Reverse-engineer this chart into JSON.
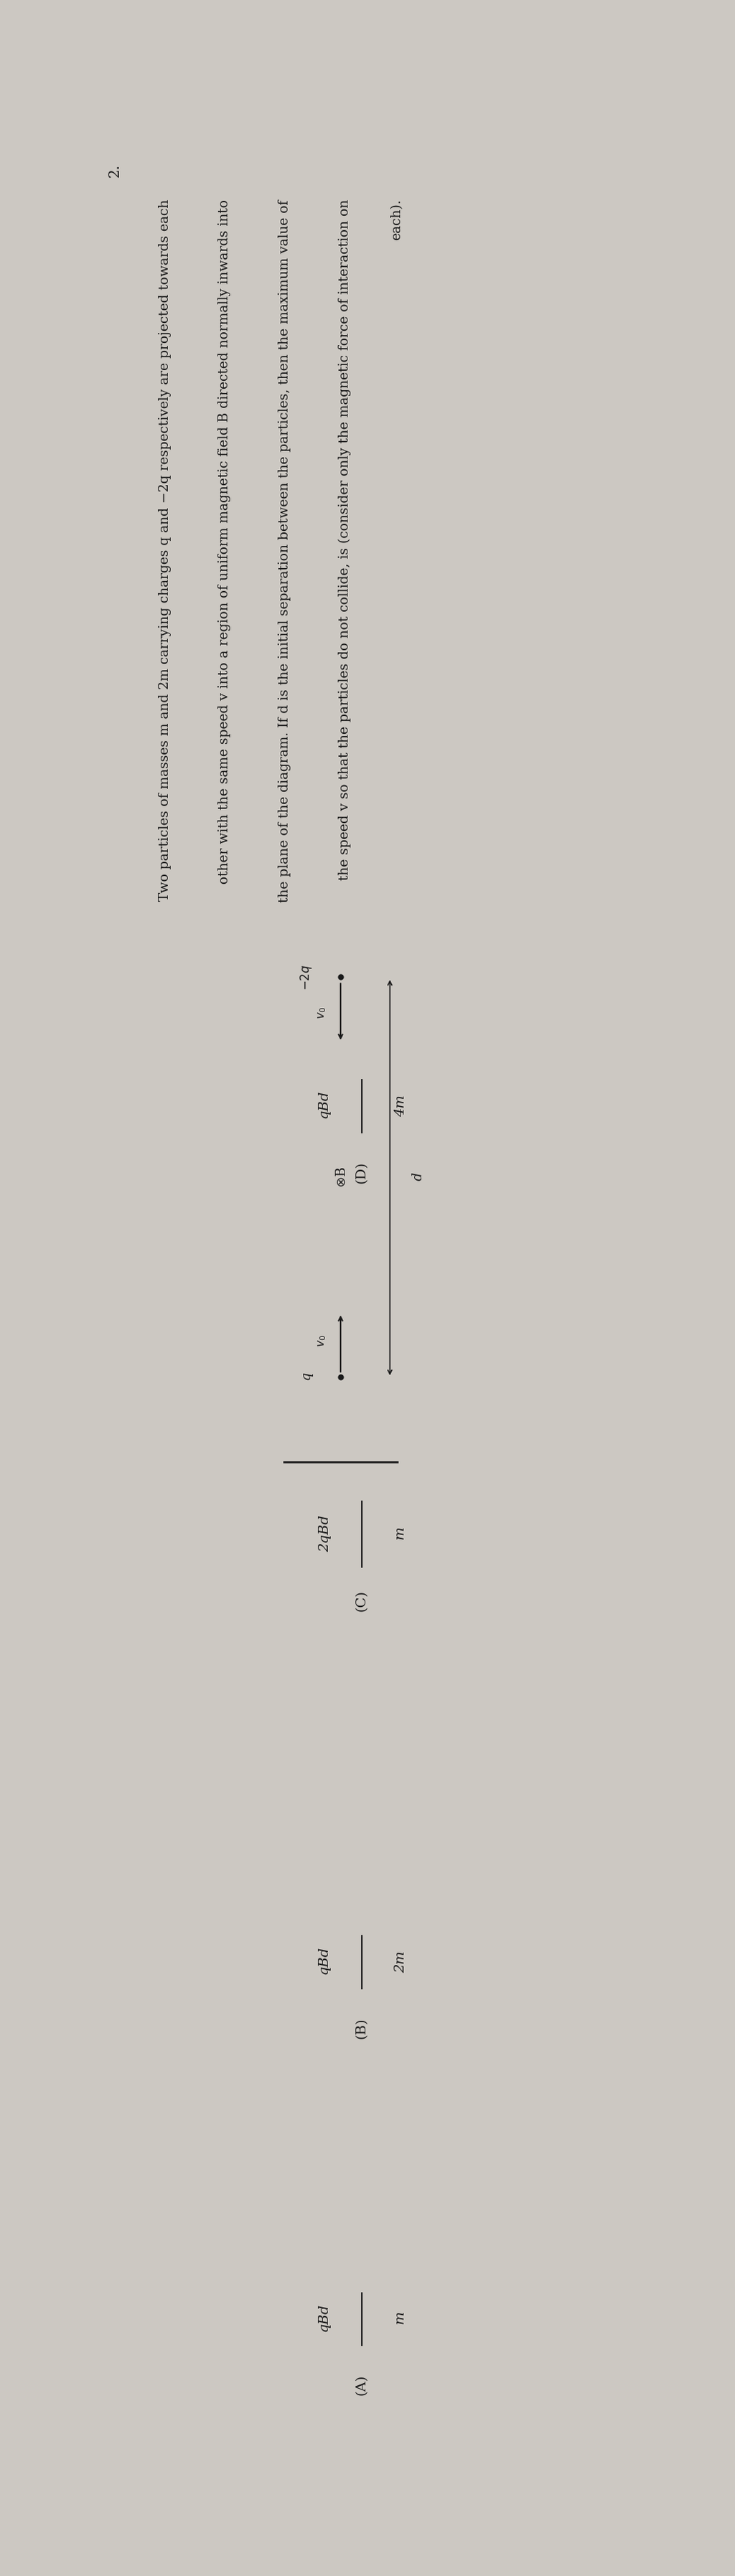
{
  "bg_color": "#ccc8c2",
  "fig_width": 35.91,
  "fig_height": 10.24,
  "question_number": "2.",
  "question_text_lines": [
    "Two particles of masses m and 2m carrying charges q and −2q respectively are projected towards each",
    "other with the same speed v into a region of uniform magnetic field B directed normally inwards into",
    "the plane of the diagram. If d is the initial separation between the particles, then the maximum value of",
    "the speed v so that the particles do not collide, is (consider only the magnetic force of interaction on",
    "each)."
  ],
  "options": [
    {
      "label": "(A)",
      "numerator": "qBd",
      "denominator": "m"
    },
    {
      "label": "(B)",
      "numerator": "qBd",
      "denominator": "2m"
    },
    {
      "label": "(C)",
      "numerator": "2qBd",
      "denominator": "m"
    },
    {
      "label": "(D)",
      "numerator": "qBd",
      "denominator": "4m"
    }
  ],
  "font_color": "#1a1a1a",
  "font_size_text": 13.5,
  "font_size_options": 14,
  "font_size_diagram": 12
}
